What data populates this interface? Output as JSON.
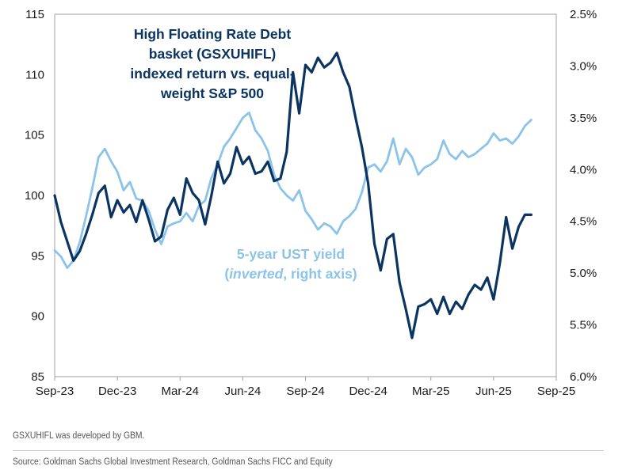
{
  "chart_data": {
    "type": "line",
    "title_lines": [
      "High Floating Rate Debt",
      "basket (GSXUHIFL)",
      "indexed return vs. equal-",
      "weight S&P 500"
    ],
    "annotation_lines": [
      "5-year UST yield",
      "(inverted, right axis)"
    ],
    "annotation_italic_word": "inverted",
    "x_tick_labels": [
      "Sep-23",
      "Dec-23",
      "Mar-24",
      "Jun-24",
      "Sep-24",
      "Dec-24",
      "Mar-25",
      "Jun-25",
      "Sep-25"
    ],
    "x_range_quarters": [
      0,
      8
    ],
    "left_axis": {
      "ylim": [
        85,
        115
      ],
      "ticks": [
        "85",
        "90",
        "95",
        "100",
        "105",
        "110",
        "115"
      ]
    },
    "right_axis": {
      "ylim": [
        2.5,
        6.0
      ],
      "inverted": true,
      "ticks": [
        "2.5%",
        "3.0%",
        "3.5%",
        "4.0%",
        "4.5%",
        "5.0%",
        "5.5%",
        "6.0%"
      ]
    },
    "series": [
      {
        "name": "High Floating Rate Debt basket (GSXUHIFL) indexed return vs. equal-weight S&P 500",
        "axis": "left",
        "color": "#0b3461",
        "x_quarters": [
          0,
          0.1,
          0.2,
          0.3,
          0.4,
          0.5,
          0.6,
          0.7,
          0.8,
          0.9,
          1.0,
          1.1,
          1.2,
          1.3,
          1.4,
          1.5,
          1.6,
          1.7,
          1.8,
          1.9,
          2.0,
          2.1,
          2.2,
          2.3,
          2.4,
          2.5,
          2.6,
          2.7,
          2.8,
          2.9,
          3.0,
          3.1,
          3.2,
          3.3,
          3.4,
          3.5,
          3.6,
          3.7,
          3.8,
          3.9,
          4.0,
          4.1,
          4.2,
          4.3,
          4.4,
          4.5,
          4.6,
          4.7,
          4.8,
          4.9,
          5.0,
          5.1,
          5.2,
          5.3,
          5.4,
          5.5,
          5.6,
          5.7,
          5.8,
          5.9,
          6.0,
          6.1,
          6.2,
          6.3,
          6.4,
          6.5,
          6.6,
          6.7,
          6.8,
          6.9,
          7.0,
          7.1,
          7.2,
          7.3,
          7.4,
          7.5,
          7.6
        ],
        "values": [
          100.0,
          97.8,
          96.2,
          94.6,
          95.4,
          96.8,
          98.4,
          100.2,
          100.8,
          98.2,
          99.6,
          98.6,
          99.2,
          97.8,
          99.6,
          98.0,
          96.2,
          96.6,
          98.8,
          99.8,
          98.4,
          101.4,
          100.2,
          99.6,
          97.6,
          100.0,
          102.8,
          101.0,
          101.8,
          104.0,
          102.6,
          103.2,
          101.8,
          102.0,
          102.8,
          101.2,
          101.4,
          103.6,
          110.2,
          106.8,
          110.8,
          110.2,
          111.4,
          110.6,
          111.0,
          111.8,
          110.2,
          109.0,
          106.4,
          104.0,
          101.0,
          96.0,
          93.8,
          96.4,
          96.8,
          92.8,
          90.6,
          88.2,
          90.8,
          91.0,
          91.4,
          90.2,
          91.6,
          90.2,
          91.2,
          90.6,
          91.8,
          92.6,
          92.2,
          93.2,
          91.4,
          94.4,
          98.2,
          95.6,
          97.4,
          98.4,
          98.4
        ]
      },
      {
        "name": "5-year UST yield (inverted, right axis)",
        "axis": "right",
        "color": "#8cc3ea",
        "x_quarters": [
          0,
          0.1,
          0.2,
          0.3,
          0.4,
          0.5,
          0.6,
          0.7,
          0.8,
          0.9,
          1.0,
          1.1,
          1.2,
          1.3,
          1.4,
          1.5,
          1.6,
          1.7,
          1.8,
          1.9,
          2.0,
          2.1,
          2.2,
          2.3,
          2.4,
          2.5,
          2.6,
          2.7,
          2.8,
          2.9,
          3.0,
          3.1,
          3.2,
          3.3,
          3.4,
          3.5,
          3.6,
          3.7,
          3.8,
          3.9,
          4.0,
          4.1,
          4.2,
          4.3,
          4.4,
          4.5,
          4.6,
          4.7,
          4.8,
          4.9,
          5.0,
          5.1,
          5.2,
          5.3,
          5.4,
          5.5,
          5.6,
          5.7,
          5.8,
          5.9,
          6.0,
          6.1,
          6.2,
          6.3,
          6.4,
          6.5,
          6.6,
          6.7,
          6.8,
          6.9,
          7.0,
          7.1,
          7.2,
          7.3,
          7.4,
          7.5,
          7.6
        ],
        "values": [
          4.78,
          4.84,
          4.95,
          4.88,
          4.7,
          4.45,
          4.18,
          3.88,
          3.8,
          3.92,
          4.02,
          4.2,
          4.12,
          4.28,
          4.3,
          4.4,
          4.58,
          4.72,
          4.55,
          4.52,
          4.5,
          4.42,
          4.5,
          4.35,
          4.3,
          4.08,
          3.95,
          3.78,
          3.7,
          3.6,
          3.5,
          3.45,
          3.62,
          3.7,
          3.82,
          4.05,
          4.18,
          4.25,
          4.3,
          4.2,
          4.4,
          4.48,
          4.58,
          4.52,
          4.55,
          4.62,
          4.5,
          4.45,
          4.38,
          4.22,
          3.98,
          3.95,
          4.02,
          3.92,
          3.7,
          3.95,
          3.8,
          3.88,
          4.05,
          3.98,
          3.95,
          3.9,
          3.72,
          3.85,
          3.9,
          3.82,
          3.88,
          3.85,
          3.8,
          3.75,
          3.65,
          3.72,
          3.7,
          3.75,
          3.68,
          3.58,
          3.52
        ]
      }
    ],
    "grid": false,
    "legend": "none"
  },
  "footnotes": {
    "note": "GSXUHIFL was developed by GBM.",
    "source": "Source: Goldman Sachs Global Investment Research, Goldman Sachs FICC and Equity"
  }
}
